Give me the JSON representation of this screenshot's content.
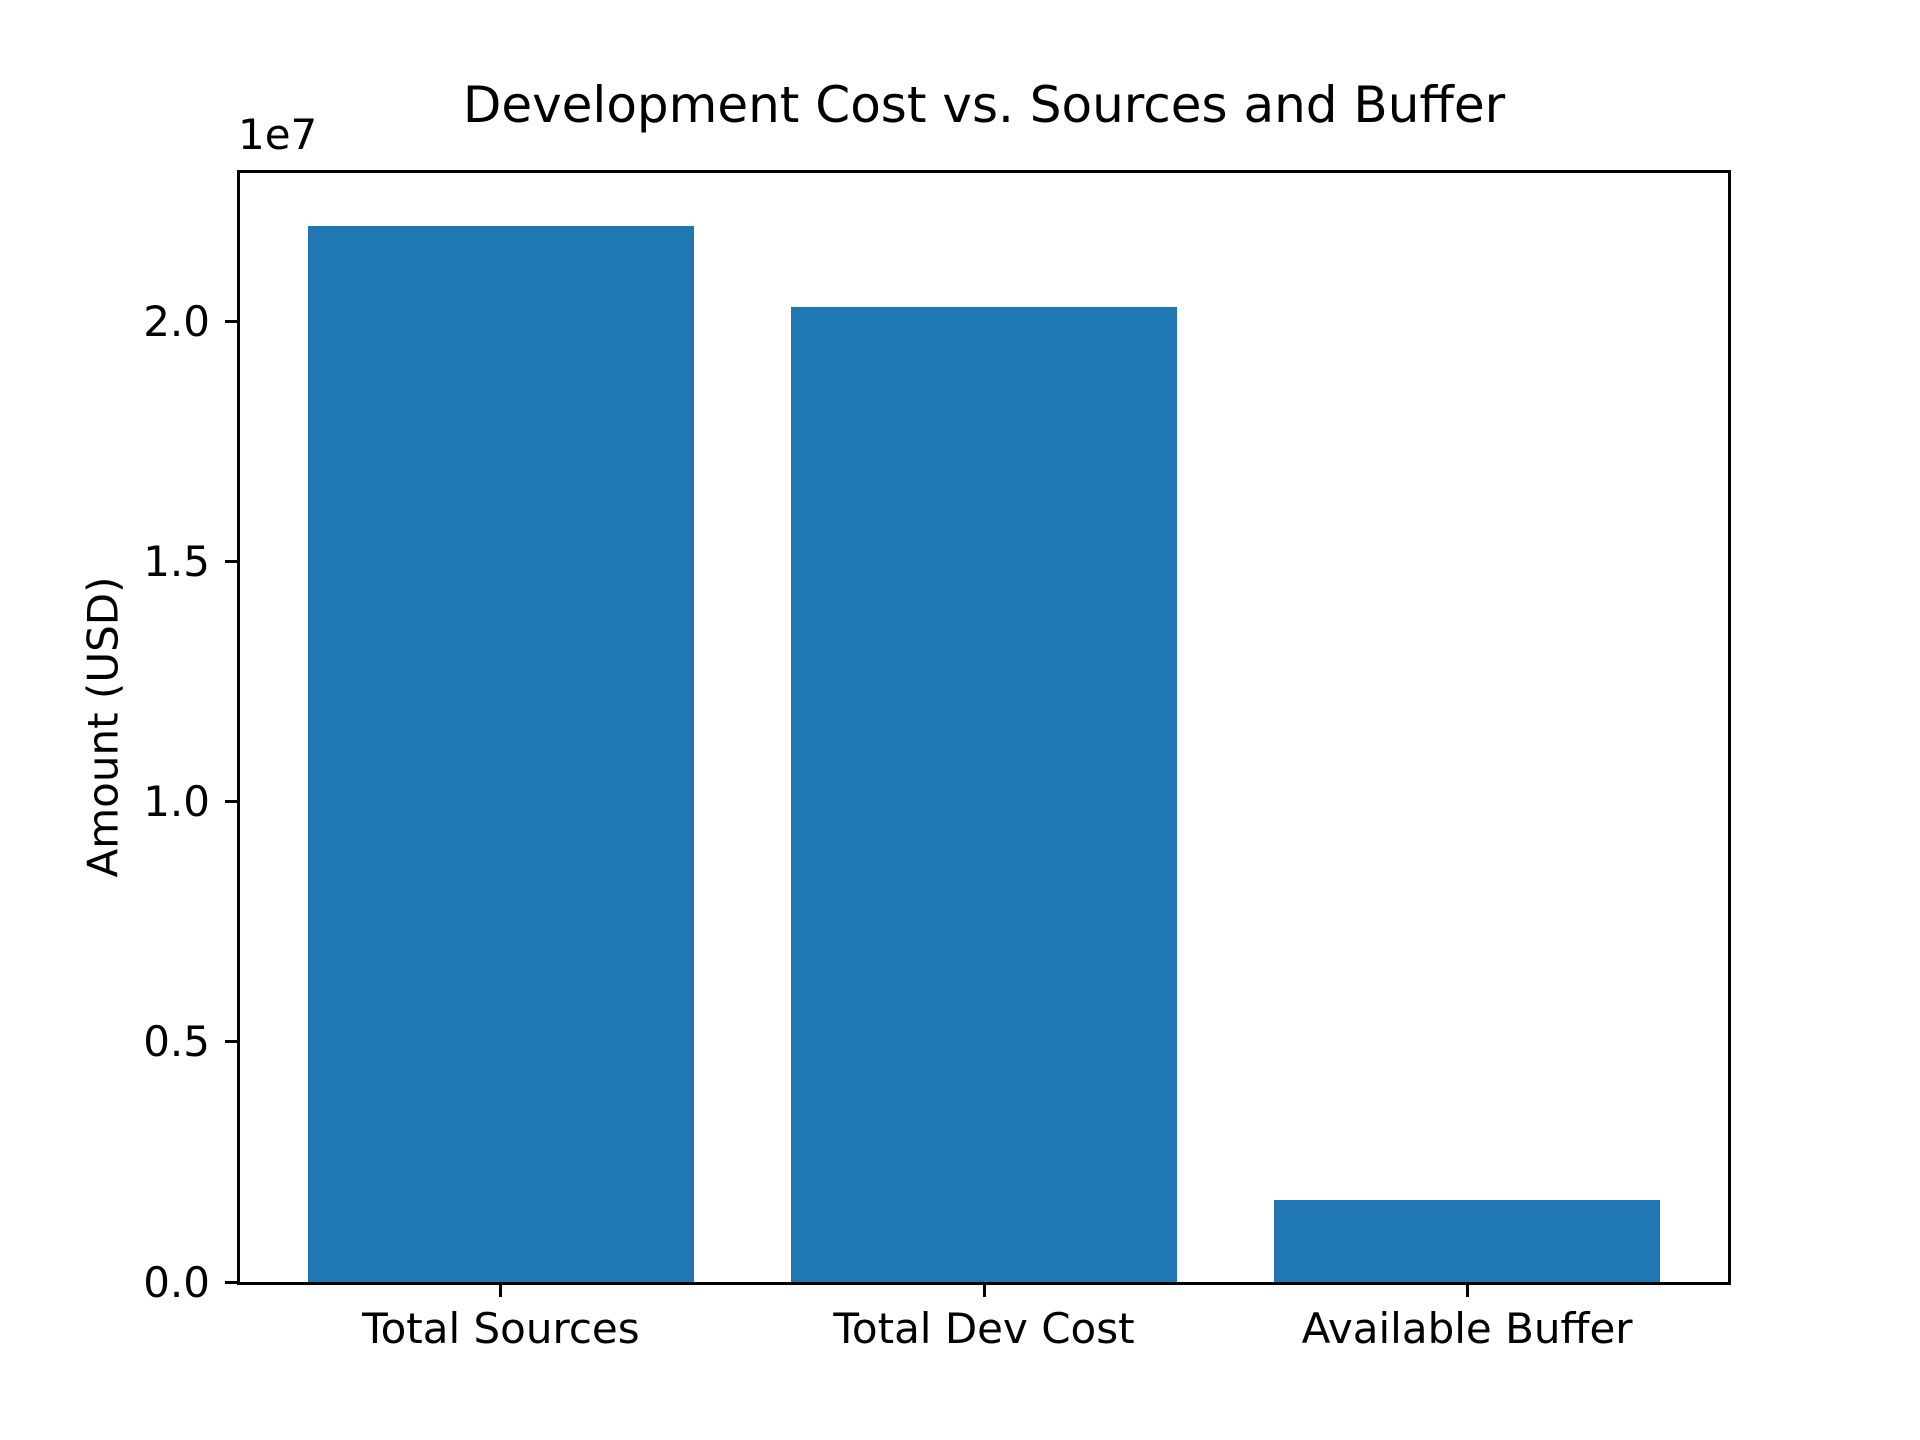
{
  "chart_data": {
    "type": "bar",
    "title": "Development Cost vs. Sources and Buffer",
    "categories": [
      "Total Sources",
      "Total Dev Cost",
      "Available Buffer"
    ],
    "values": [
      22000000,
      20300000,
      1700000
    ],
    "xlabel": "",
    "ylabel": "Amount (USD)",
    "y_offset_label": "1e7",
    "ylim": [
      0,
      23100000
    ],
    "yticks": [
      0,
      5000000,
      10000000,
      15000000,
      20000000
    ],
    "ytick_labels": [
      "0.0",
      "0.5",
      "1.0",
      "1.5",
      "2.0"
    ],
    "bar_color": "#1f77b4",
    "bar_width_fraction": 0.8,
    "grid": false,
    "legend": null
  }
}
